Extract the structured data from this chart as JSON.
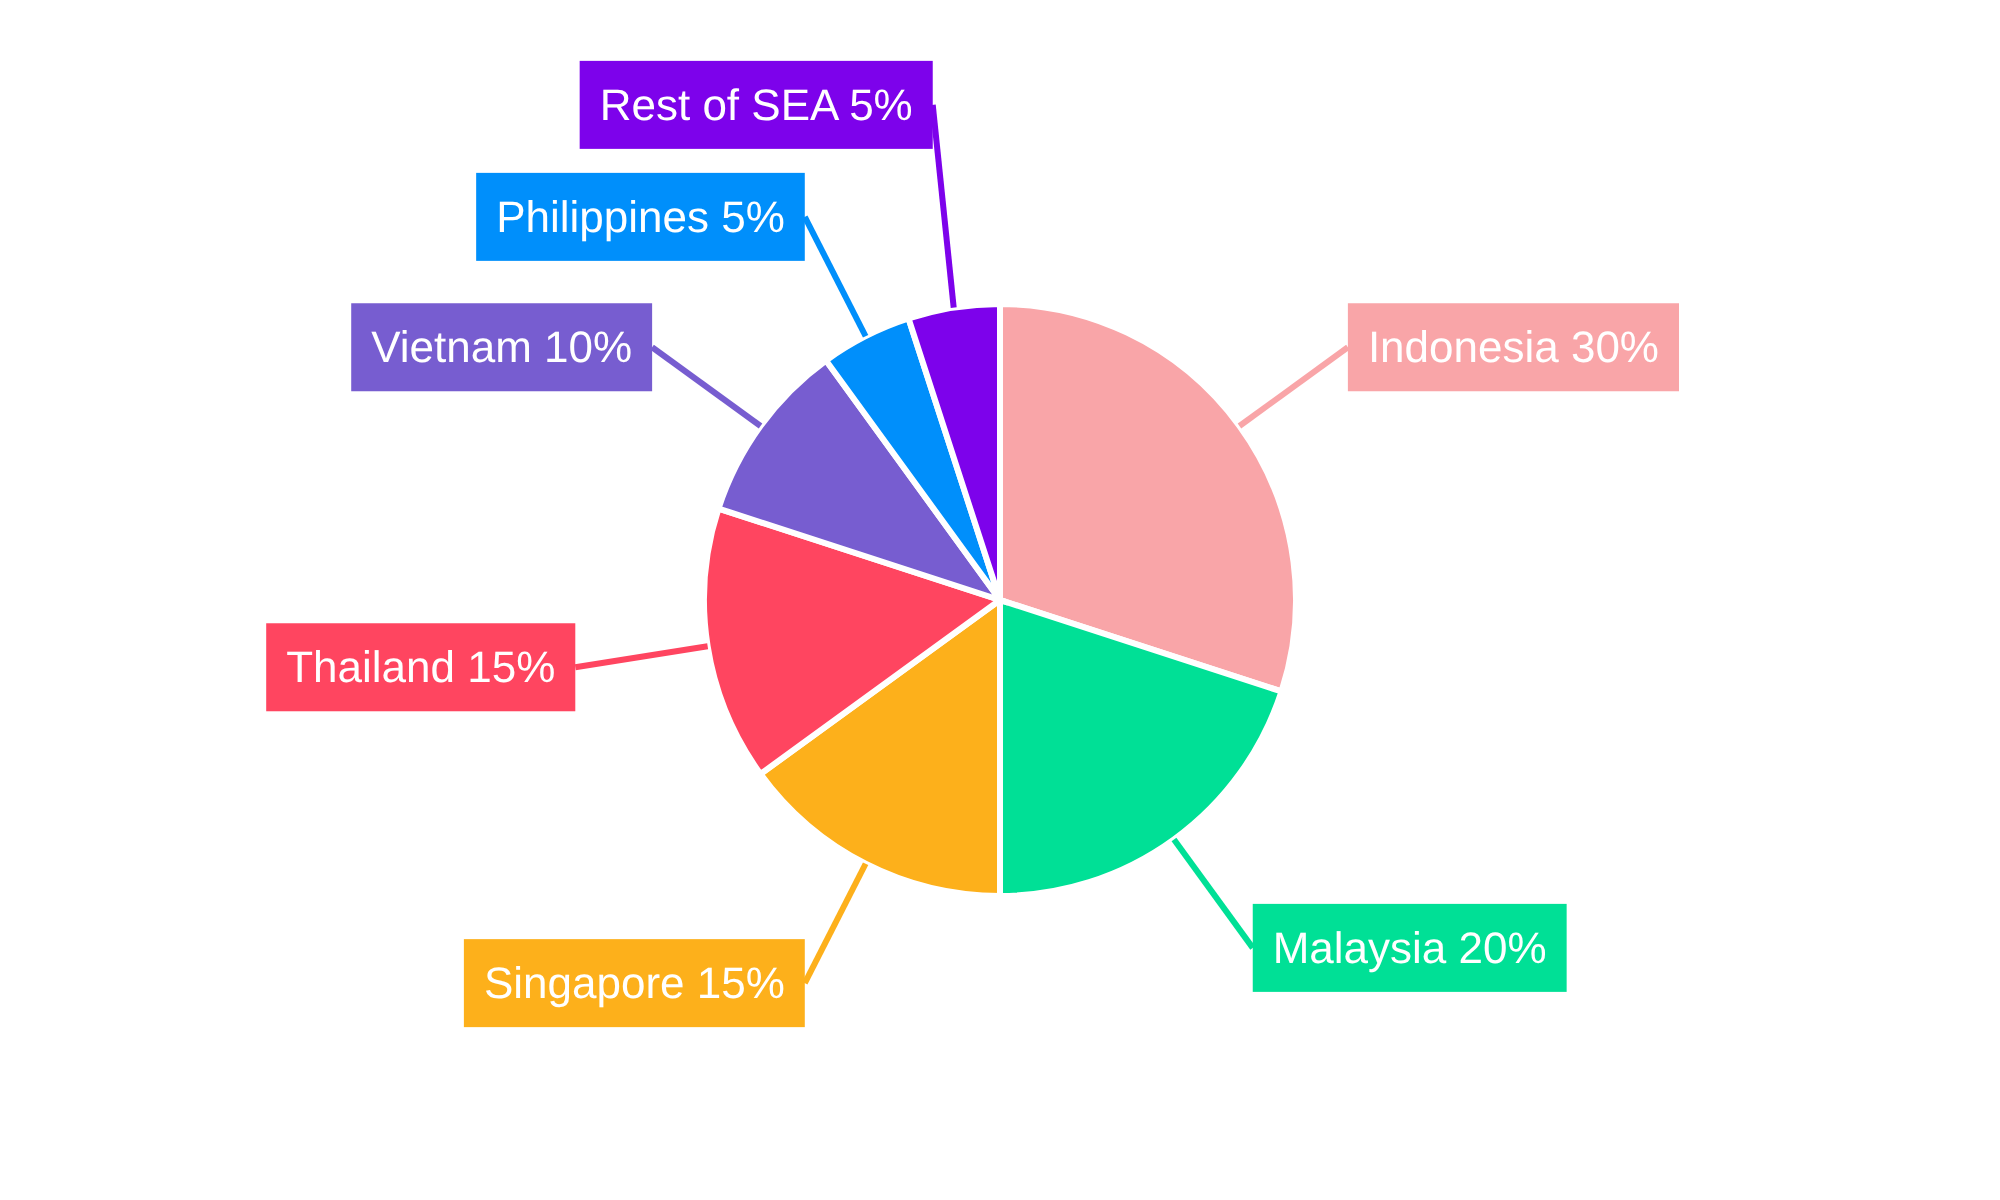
{
  "chart_data": {
    "type": "pie",
    "categories": [
      "Indonesia",
      "Malaysia",
      "Singapore",
      "Thailand",
      "Vietnam",
      "Philippines",
      "Rest of SEA"
    ],
    "values": [
      30,
      20,
      15,
      15,
      10,
      5,
      5
    ],
    "value_labels": [
      "30%",
      "20%",
      "15%",
      "15%",
      "10%",
      "5%",
      "5%"
    ],
    "colors": [
      "#f9a5a8",
      "#00e096",
      "#fdb01b",
      "#ff4560",
      "#775dd0",
      "#008ffb",
      "#7d02eb"
    ]
  }
}
